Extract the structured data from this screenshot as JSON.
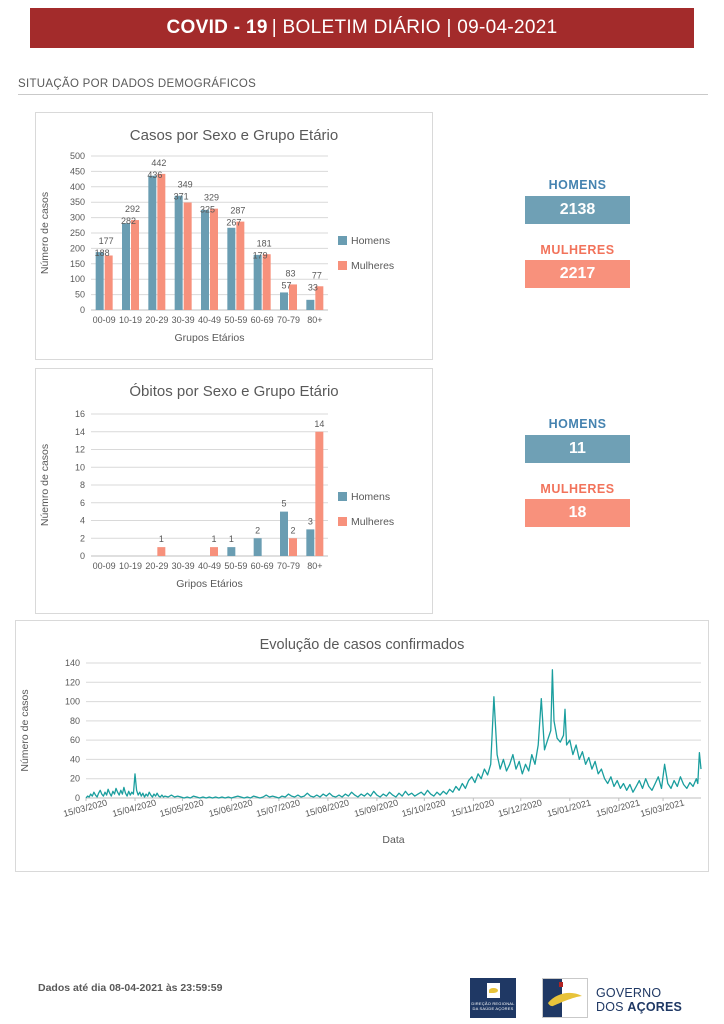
{
  "header": {
    "title_bold": "COVID - 19",
    "title_rest": " | BOLETIM DIÁRIO | 09-04-2021"
  },
  "section": {
    "title": "SITUAÇÃO POR DADOS DEMOGRÁFICOS"
  },
  "colors": {
    "header_bg": "#A32B2B",
    "homens_bar": "#6A9DB2",
    "mulheres_bar": "#F7917C",
    "homens_label": "#4583B0",
    "mulheres_label": "#F2735B",
    "homens_box": "#6FA0B5",
    "mulheres_box": "#F8917C",
    "line": "#1A9E9E",
    "grid": "#D9D9D9",
    "axis": "#BFBFBF",
    "text": "#595959"
  },
  "summary_cases": {
    "homens_label": "HOMENS",
    "homens_value": "2138",
    "mulheres_label": "MULHERES",
    "mulheres_value": "2217"
  },
  "summary_deaths": {
    "homens_label": "HOMENS",
    "homens_value": "11",
    "mulheres_label": "MULHERES",
    "mulheres_value": "18"
  },
  "footer": {
    "note": "Dados até dia 08-04-2021 às 23:59:59",
    "logo1_line1": "DIREÇÃO REGIONAL",
    "logo1_line2": "DA SAÚDE AÇORES",
    "logo2_governo": "GOVERNO",
    "logo2_dos": "DOS ",
    "logo2_acores": "AÇORES"
  },
  "chart_data": [
    {
      "type": "bar",
      "title": "Casos por Sexo e Grupo Etário",
      "xlabel": "Grupos Etários",
      "ylabel": "Número de casos",
      "ylim": [
        0,
        500
      ],
      "ystep": 50,
      "grid": true,
      "legend_position": "right",
      "categories": [
        "00-09",
        "10-19",
        "20-29",
        "30-39",
        "40-49",
        "50-59",
        "60-69",
        "70-79",
        "80+"
      ],
      "series": [
        {
          "name": "Homens",
          "values": [
            188,
            282,
            436,
            371,
            325,
            267,
            179,
            57,
            33
          ]
        },
        {
          "name": "Mulheres",
          "values": [
            177,
            292,
            442,
            349,
            329,
            287,
            181,
            83,
            77
          ]
        }
      ]
    },
    {
      "type": "bar",
      "title": "Óbitos por Sexo e Grupo Etário",
      "xlabel": "Gripos Etários",
      "ylabel": "Núemro de casos",
      "ylim": [
        0,
        16
      ],
      "ystep": 2,
      "grid": true,
      "legend_position": "right",
      "categories": [
        "00-09",
        "10-19",
        "20-29",
        "30-39",
        "40-49",
        "50-59",
        "60-69",
        "70-79",
        "80+"
      ],
      "series": [
        {
          "name": "Homens",
          "values": [
            0,
            0,
            0,
            0,
            0,
            1,
            2,
            5,
            3
          ]
        },
        {
          "name": "Mulheres",
          "values": [
            0,
            0,
            1,
            0,
            1,
            0,
            0,
            2,
            14
          ]
        }
      ]
    },
    {
      "type": "line",
      "title": "Evolução de casos confirmados",
      "xlabel": "Data",
      "ylabel": "Número de casos",
      "ylim": [
        0,
        140
      ],
      "ystep": 20,
      "grid": true,
      "x_range_days": [
        0,
        389
      ],
      "x_tick_days": [
        0,
        31,
        61,
        92,
        122,
        153,
        184,
        214,
        245,
        275,
        306,
        337,
        365
      ],
      "x_tick_labels": [
        "15/03/2020",
        "15/04/2020",
        "15/05/2020",
        "15/06/2020",
        "15/07/2020",
        "15/08/2020",
        "15/09/2020",
        "15/10/2020",
        "15/11/2020",
        "15/12/2020",
        "15/01/2021",
        "15/02/2021",
        "15/03/2021"
      ],
      "points": [
        [
          0,
          0
        ],
        [
          1,
          2
        ],
        [
          2,
          1
        ],
        [
          3,
          4
        ],
        [
          4,
          2
        ],
        [
          5,
          6
        ],
        [
          6,
          3
        ],
        [
          7,
          1
        ],
        [
          8,
          5
        ],
        [
          9,
          8
        ],
        [
          10,
          4
        ],
        [
          11,
          2
        ],
        [
          12,
          6
        ],
        [
          13,
          3
        ],
        [
          14,
          9
        ],
        [
          15,
          5
        ],
        [
          16,
          2
        ],
        [
          17,
          7
        ],
        [
          18,
          4
        ],
        [
          19,
          10
        ],
        [
          20,
          6
        ],
        [
          21,
          3
        ],
        [
          22,
          8
        ],
        [
          23,
          4
        ],
        [
          24,
          11
        ],
        [
          25,
          5
        ],
        [
          26,
          2
        ],
        [
          27,
          7
        ],
        [
          28,
          3
        ],
        [
          29,
          6
        ],
        [
          30,
          4
        ],
        [
          31,
          25
        ],
        [
          32,
          8
        ],
        [
          33,
          3
        ],
        [
          34,
          6
        ],
        [
          35,
          2
        ],
        [
          36,
          5
        ],
        [
          37,
          1
        ],
        [
          38,
          4
        ],
        [
          39,
          2
        ],
        [
          40,
          6
        ],
        [
          41,
          3
        ],
        [
          42,
          1
        ],
        [
          43,
          4
        ],
        [
          44,
          2
        ],
        [
          45,
          5
        ],
        [
          46,
          2
        ],
        [
          47,
          1
        ],
        [
          48,
          3
        ],
        [
          49,
          1
        ],
        [
          50,
          2
        ],
        [
          52,
          1
        ],
        [
          54,
          3
        ],
        [
          56,
          1
        ],
        [
          58,
          2
        ],
        [
          60,
          1
        ],
        [
          62,
          0
        ],
        [
          64,
          1
        ],
        [
          66,
          0
        ],
        [
          68,
          2
        ],
        [
          70,
          1
        ],
        [
          72,
          0
        ],
        [
          74,
          1
        ],
        [
          76,
          0
        ],
        [
          78,
          1
        ],
        [
          80,
          0
        ],
        [
          82,
          1
        ],
        [
          84,
          0
        ],
        [
          86,
          1
        ],
        [
          88,
          0
        ],
        [
          90,
          1
        ],
        [
          92,
          0
        ],
        [
          94,
          1
        ],
        [
          96,
          2
        ],
        [
          98,
          1
        ],
        [
          100,
          0
        ],
        [
          102,
          1
        ],
        [
          104,
          0
        ],
        [
          106,
          2
        ],
        [
          108,
          1
        ],
        [
          110,
          0
        ],
        [
          112,
          1
        ],
        [
          114,
          3
        ],
        [
          116,
          1
        ],
        [
          118,
          2
        ],
        [
          120,
          1
        ],
        [
          122,
          0
        ],
        [
          124,
          2
        ],
        [
          126,
          1
        ],
        [
          128,
          4
        ],
        [
          130,
          2
        ],
        [
          132,
          1
        ],
        [
          134,
          3
        ],
        [
          136,
          1
        ],
        [
          138,
          2
        ],
        [
          140,
          5
        ],
        [
          142,
          2
        ],
        [
          144,
          1
        ],
        [
          146,
          3
        ],
        [
          148,
          1
        ],
        [
          150,
          4
        ],
        [
          152,
          2
        ],
        [
          154,
          5
        ],
        [
          156,
          2
        ],
        [
          158,
          1
        ],
        [
          160,
          3
        ],
        [
          162,
          1
        ],
        [
          164,
          4
        ],
        [
          166,
          2
        ],
        [
          168,
          6
        ],
        [
          170,
          3
        ],
        [
          172,
          1
        ],
        [
          174,
          4
        ],
        [
          176,
          2
        ],
        [
          178,
          5
        ],
        [
          180,
          2
        ],
        [
          182,
          7
        ],
        [
          184,
          3
        ],
        [
          186,
          1
        ],
        [
          188,
          4
        ],
        [
          190,
          2
        ],
        [
          192,
          6
        ],
        [
          194,
          3
        ],
        [
          196,
          1
        ],
        [
          198,
          5
        ],
        [
          200,
          2
        ],
        [
          202,
          7
        ],
        [
          204,
          3
        ],
        [
          206,
          5
        ],
        [
          208,
          2
        ],
        [
          210,
          4
        ],
        [
          212,
          6
        ],
        [
          214,
          3
        ],
        [
          216,
          8
        ],
        [
          218,
          4
        ],
        [
          220,
          2
        ],
        [
          222,
          6
        ],
        [
          224,
          3
        ],
        [
          226,
          7
        ],
        [
          228,
          4
        ],
        [
          230,
          9
        ],
        [
          232,
          6
        ],
        [
          234,
          12
        ],
        [
          236,
          8
        ],
        [
          238,
          15
        ],
        [
          240,
          10
        ],
        [
          242,
          18
        ],
        [
          244,
          22
        ],
        [
          246,
          16
        ],
        [
          248,
          25
        ],
        [
          250,
          20
        ],
        [
          252,
          30
        ],
        [
          254,
          24
        ],
        [
          256,
          35
        ],
        [
          258,
          105
        ],
        [
          260,
          45
        ],
        [
          262,
          30
        ],
        [
          264,
          40
        ],
        [
          266,
          28
        ],
        [
          268,
          35
        ],
        [
          270,
          45
        ],
        [
          272,
          30
        ],
        [
          274,
          38
        ],
        [
          276,
          25
        ],
        [
          278,
          35
        ],
        [
          280,
          28
        ],
        [
          282,
          45
        ],
        [
          284,
          35
        ],
        [
          286,
          55
        ],
        [
          288,
          103
        ],
        [
          290,
          50
        ],
        [
          292,
          60
        ],
        [
          294,
          70
        ],
        [
          295,
          133
        ],
        [
          296,
          80
        ],
        [
          298,
          62
        ],
        [
          300,
          58
        ],
        [
          302,
          65
        ],
        [
          303,
          92
        ],
        [
          304,
          55
        ],
        [
          306,
          60
        ],
        [
          308,
          45
        ],
        [
          310,
          55
        ],
        [
          312,
          40
        ],
        [
          314,
          48
        ],
        [
          316,
          35
        ],
        [
          318,
          42
        ],
        [
          320,
          30
        ],
        [
          322,
          38
        ],
        [
          324,
          25
        ],
        [
          326,
          30
        ],
        [
          328,
          20
        ],
        [
          330,
          15
        ],
        [
          332,
          22
        ],
        [
          334,
          12
        ],
        [
          336,
          18
        ],
        [
          338,
          10
        ],
        [
          340,
          15
        ],
        [
          342,
          8
        ],
        [
          344,
          14
        ],
        [
          346,
          6
        ],
        [
          348,
          12
        ],
        [
          350,
          18
        ],
        [
          352,
          10
        ],
        [
          354,
          20
        ],
        [
          356,
          12
        ],
        [
          358,
          8
        ],
        [
          360,
          15
        ],
        [
          362,
          22
        ],
        [
          364,
          10
        ],
        [
          366,
          35
        ],
        [
          368,
          15
        ],
        [
          370,
          10
        ],
        [
          372,
          18
        ],
        [
          374,
          12
        ],
        [
          376,
          22
        ],
        [
          378,
          14
        ],
        [
          380,
          10
        ],
        [
          382,
          16
        ],
        [
          384,
          12
        ],
        [
          386,
          20
        ],
        [
          387,
          15
        ],
        [
          388,
          47
        ],
        [
          389,
          30
        ]
      ]
    }
  ]
}
